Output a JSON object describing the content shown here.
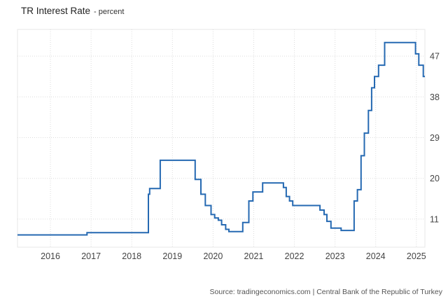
{
  "chart_data": {
    "type": "line",
    "step": true,
    "title": "TR Interest Rate",
    "subtitle": "- percent",
    "source": "Source: tradingeconomics.com | Central Bank of the Republic of Turkey",
    "legend": "none",
    "grid": true,
    "xlim": [
      2015.19,
      2025.21
    ],
    "ylim": [
      4.8,
      52.9
    ],
    "x_ticks": [
      2016,
      2017,
      2018,
      2019,
      2020,
      2021,
      2022,
      2023,
      2024,
      2025
    ],
    "y_ticks": [
      11,
      20,
      29,
      38,
      47
    ],
    "line_color": "#2569b2",
    "colors": {
      "grid": "#dcdcdc",
      "plot_border": "#e7e7e7",
      "tick_text": "#444444"
    },
    "series": [
      {
        "name": "TR Interest Rate (percent)",
        "points": [
          [
            2015.19,
            7.5
          ],
          [
            2016.9,
            8.0
          ],
          [
            2018.41,
            16.5
          ],
          [
            2018.44,
            17.75
          ],
          [
            2018.7,
            24.0
          ],
          [
            2019.56,
            19.75
          ],
          [
            2019.7,
            16.5
          ],
          [
            2019.81,
            14.0
          ],
          [
            2019.95,
            12.0
          ],
          [
            2020.04,
            11.25
          ],
          [
            2020.13,
            10.75
          ],
          [
            2020.21,
            9.75
          ],
          [
            2020.31,
            8.75
          ],
          [
            2020.39,
            8.25
          ],
          [
            2020.73,
            10.25
          ],
          [
            2020.88,
            15.0
          ],
          [
            2020.98,
            17.0
          ],
          [
            2021.22,
            19.0
          ],
          [
            2021.73,
            18.0
          ],
          [
            2021.8,
            16.0
          ],
          [
            2021.88,
            15.0
          ],
          [
            2021.96,
            14.0
          ],
          [
            2022.63,
            13.0
          ],
          [
            2022.73,
            12.0
          ],
          [
            2022.8,
            10.5
          ],
          [
            2022.9,
            9.0
          ],
          [
            2023.15,
            8.5
          ],
          [
            2023.47,
            15.0
          ],
          [
            2023.55,
            17.5
          ],
          [
            2023.64,
            25.0
          ],
          [
            2023.72,
            30.0
          ],
          [
            2023.82,
            35.0
          ],
          [
            2023.9,
            40.0
          ],
          [
            2023.97,
            42.5
          ],
          [
            2024.07,
            45.0
          ],
          [
            2024.22,
            50.0
          ],
          [
            2024.98,
            47.5
          ],
          [
            2025.06,
            45.0
          ],
          [
            2025.17,
            42.5
          ]
        ]
      }
    ]
  }
}
